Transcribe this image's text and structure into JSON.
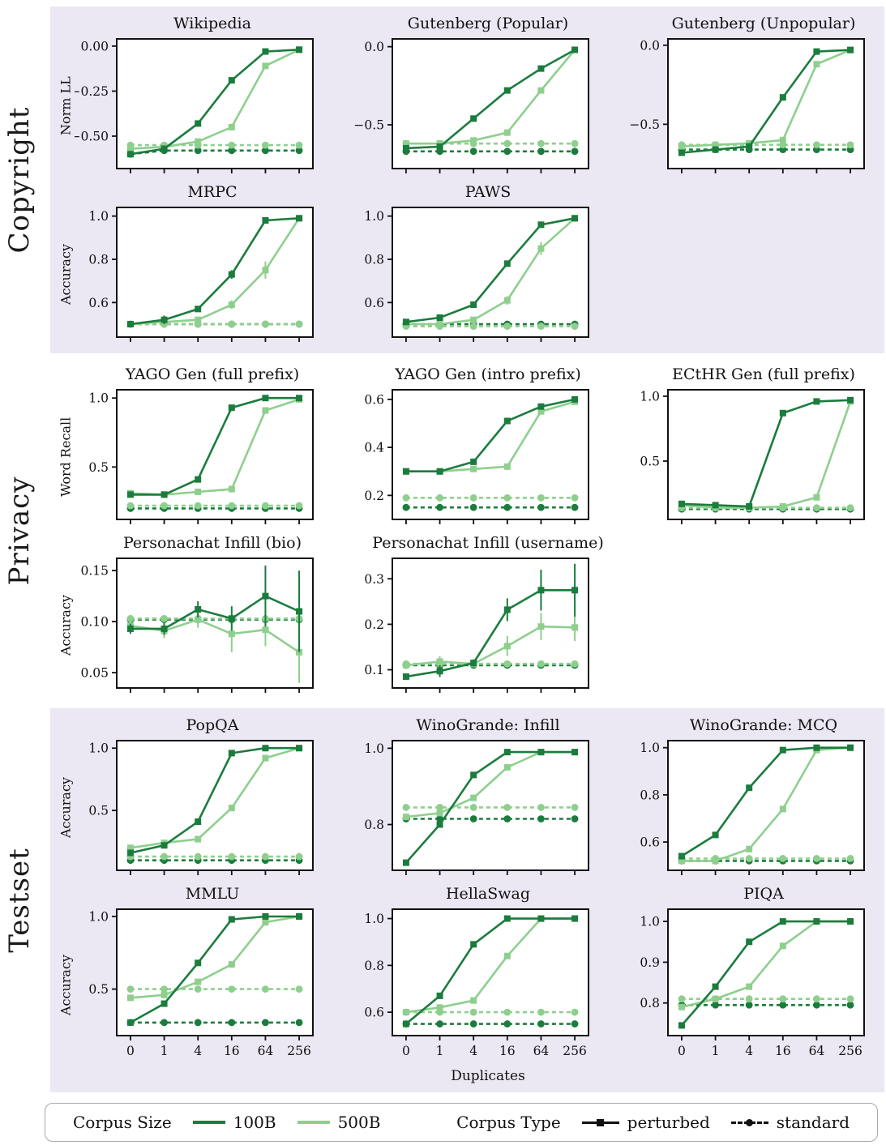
{
  "figure": {
    "groups": [
      {
        "label": "Copyright"
      },
      {
        "label": "Privacy"
      },
      {
        "label": "Testset"
      }
    ],
    "xlabel": "Duplicates",
    "x_categories": [
      "0",
      "1",
      "4",
      "16",
      "64",
      "256"
    ]
  },
  "styles": {
    "colors": {
      "100B": "#1b7c3d",
      "500B": "#8ecf8e"
    },
    "background_band": "#ebe7f3",
    "series": [
      {
        "key": "100B perturbed",
        "color": "#1b7c3d",
        "dash": "solid",
        "marker": "square"
      },
      {
        "key": "500B perturbed",
        "color": "#8ecf8e",
        "dash": "solid",
        "marker": "square"
      },
      {
        "key": "100B standard",
        "color": "#1b7c3d",
        "dash": "dashed",
        "marker": "circle"
      },
      {
        "key": "500B standard",
        "color": "#8ecf8e",
        "dash": "dashed",
        "marker": "circle"
      }
    ]
  },
  "legend": {
    "corpus_size_label": "Corpus Size",
    "size_items": [
      {
        "label": "100B"
      },
      {
        "label": "500B"
      }
    ],
    "corpus_type_label": "Corpus Type",
    "type_items": [
      {
        "label": "perturbed"
      },
      {
        "label": "standard"
      }
    ]
  },
  "chart_data": [
    {
      "type": "line",
      "title": "Wikipedia",
      "ylabel": "Norm LL",
      "ylim": [
        -0.68,
        0.04
      ],
      "yticks": [
        0.0,
        -0.25,
        -0.5
      ],
      "ytick_labels": [
        "0.00",
        "−0.25",
        "−0.50"
      ],
      "series": [
        {
          "name": "100B perturbed",
          "values": [
            -0.6,
            -0.57,
            -0.43,
            -0.19,
            -0.03,
            -0.02
          ]
        },
        {
          "name": "500B perturbed",
          "values": [
            -0.57,
            -0.56,
            -0.53,
            -0.45,
            -0.11,
            -0.02
          ]
        },
        {
          "name": "100B standard",
          "values": [
            -0.6,
            -0.58,
            -0.58,
            -0.58,
            -0.58,
            -0.58
          ]
        },
        {
          "name": "500B standard",
          "values": [
            -0.55,
            -0.55,
            -0.55,
            -0.55,
            -0.55,
            -0.55
          ]
        }
      ]
    },
    {
      "type": "line",
      "title": "Gutenberg (Popular)",
      "ylim": [
        -0.78,
        0.05
      ],
      "yticks": [
        0.0,
        -0.5
      ],
      "ytick_labels": [
        "0.0",
        "−0.5"
      ],
      "series": [
        {
          "name": "100B perturbed",
          "values": [
            -0.65,
            -0.64,
            -0.46,
            -0.28,
            -0.14,
            -0.02
          ]
        },
        {
          "name": "500B perturbed",
          "values": [
            -0.62,
            -0.62,
            -0.6,
            -0.55,
            -0.28,
            -0.02
          ]
        },
        {
          "name": "100B standard",
          "values": [
            -0.67,
            -0.67,
            -0.67,
            -0.67,
            -0.67,
            -0.67
          ]
        },
        {
          "name": "500B standard",
          "values": [
            -0.62,
            -0.62,
            -0.62,
            -0.62,
            -0.62,
            -0.62
          ]
        }
      ]
    },
    {
      "type": "line",
      "title": "Gutenberg (Unpopular)",
      "ylim": [
        -0.78,
        0.04
      ],
      "yticks": [
        0.0,
        -0.5
      ],
      "ytick_labels": [
        "0.0",
        "−0.5"
      ],
      "series": [
        {
          "name": "100B perturbed",
          "values": [
            -0.68,
            -0.66,
            -0.64,
            -0.33,
            -0.04,
            -0.03
          ]
        },
        {
          "name": "500B perturbed",
          "values": [
            -0.64,
            -0.63,
            -0.62,
            -0.6,
            -0.12,
            -0.03
          ]
        },
        {
          "name": "100B standard",
          "values": [
            -0.66,
            -0.66,
            -0.66,
            -0.66,
            -0.66,
            -0.66
          ]
        },
        {
          "name": "500B standard",
          "values": [
            -0.63,
            -0.63,
            -0.63,
            -0.63,
            -0.63,
            -0.63
          ]
        }
      ]
    },
    {
      "type": "line",
      "title": "MRPC",
      "ylabel": "Accuracy",
      "ylim": [
        0.44,
        1.04
      ],
      "yticks": [
        1.0,
        0.8,
        0.6
      ],
      "ytick_labels": [
        "1.0",
        "0.8",
        "0.6"
      ],
      "series": [
        {
          "name": "100B perturbed",
          "values": [
            0.5,
            0.52,
            0.57,
            0.73,
            0.98,
            0.99
          ],
          "err": [
            0,
            0.02,
            0.01,
            0.02,
            0.01,
            0.01
          ]
        },
        {
          "name": "500B perturbed",
          "values": [
            0.5,
            0.51,
            0.52,
            0.59,
            0.75,
            0.99
          ],
          "err": [
            0,
            0,
            0.01,
            0.02,
            0.04,
            0.01
          ]
        },
        {
          "name": "100B standard",
          "values": [
            0.5,
            0.5,
            0.5,
            0.5,
            0.5,
            0.5
          ]
        },
        {
          "name": "500B standard",
          "values": [
            0.5,
            0.5,
            0.5,
            0.5,
            0.5,
            0.5
          ]
        }
      ]
    },
    {
      "type": "line",
      "title": "PAWS",
      "ylim": [
        0.44,
        1.04
      ],
      "yticks": [
        1.0,
        0.8,
        0.6
      ],
      "ytick_labels": [
        "1.0",
        "0.8",
        "0.6"
      ],
      "series": [
        {
          "name": "100B perturbed",
          "values": [
            0.51,
            0.53,
            0.59,
            0.78,
            0.96,
            0.99
          ]
        },
        {
          "name": "500B perturbed",
          "values": [
            0.5,
            0.5,
            0.52,
            0.61,
            0.85,
            0.99
          ],
          "err": [
            0.01,
            0,
            0.01,
            0.02,
            0.03,
            0.01
          ]
        },
        {
          "name": "100B standard",
          "values": [
            0.5,
            0.5,
            0.5,
            0.5,
            0.5,
            0.5
          ]
        },
        {
          "name": "500B standard",
          "values": [
            0.49,
            0.49,
            0.49,
            0.49,
            0.49,
            0.49
          ]
        }
      ]
    },
    {
      "type": "line",
      "title": "YAGO Gen (full prefix)",
      "ylabel": "Word Recall",
      "ylim": [
        0.12,
        1.06
      ],
      "yticks": [
        1.0,
        0.5
      ],
      "ytick_labels": [
        "1.0",
        "0.5"
      ],
      "series": [
        {
          "name": "100B perturbed",
          "values": [
            0.3,
            0.3,
            0.41,
            0.93,
            1.0,
            1.0
          ]
        },
        {
          "name": "500B perturbed",
          "values": [
            0.31,
            0.3,
            0.32,
            0.34,
            0.91,
            0.99
          ]
        },
        {
          "name": "100B standard",
          "values": [
            0.2,
            0.2,
            0.2,
            0.2,
            0.2,
            0.2
          ]
        },
        {
          "name": "500B standard",
          "values": [
            0.22,
            0.22,
            0.22,
            0.22,
            0.22,
            0.22
          ]
        }
      ]
    },
    {
      "type": "line",
      "title": "YAGO Gen (intro prefix)",
      "ylim": [
        0.1,
        0.64
      ],
      "yticks": [
        0.6,
        0.4,
        0.2
      ],
      "ytick_labels": [
        "0.6",
        "0.4",
        "0.2"
      ],
      "series": [
        {
          "name": "100B perturbed",
          "values": [
            0.3,
            0.3,
            0.34,
            0.51,
            0.57,
            0.6
          ],
          "err": [
            0.01,
            0,
            0.01,
            0.01,
            0.01,
            0.01
          ]
        },
        {
          "name": "500B perturbed",
          "values": [
            0.3,
            0.3,
            0.31,
            0.32,
            0.55,
            0.59
          ]
        },
        {
          "name": "100B standard",
          "values": [
            0.15,
            0.15,
            0.15,
            0.15,
            0.15,
            0.15
          ]
        },
        {
          "name": "500B standard",
          "values": [
            0.19,
            0.19,
            0.19,
            0.19,
            0.19,
            0.19
          ]
        }
      ]
    },
    {
      "type": "line",
      "title": "ECtHR Gen (full prefix)",
      "ylim": [
        0.05,
        1.05
      ],
      "yticks": [
        1.0,
        0.5
      ],
      "ytick_labels": [
        "1.0",
        "0.5"
      ],
      "series": [
        {
          "name": "100B perturbed",
          "values": [
            0.17,
            0.16,
            0.15,
            0.87,
            0.96,
            0.97
          ]
        },
        {
          "name": "500B perturbed",
          "values": [
            0.16,
            0.14,
            0.14,
            0.15,
            0.22,
            0.96
          ]
        },
        {
          "name": "100B standard",
          "values": [
            0.13,
            0.13,
            0.13,
            0.13,
            0.13,
            0.13
          ]
        },
        {
          "name": "500B standard",
          "values": [
            0.14,
            0.14,
            0.14,
            0.14,
            0.14,
            0.14
          ]
        }
      ]
    },
    {
      "type": "line",
      "title": "Personachat Infill (bio)",
      "ylabel": "Accuracy",
      "ylim": [
        0.035,
        0.162
      ],
      "yticks": [
        0.15,
        0.1,
        0.05
      ],
      "ytick_labels": [
        "0.15",
        "0.10",
        "0.05"
      ],
      "series": [
        {
          "name": "100B perturbed",
          "values": [
            0.093,
            0.093,
            0.112,
            0.103,
            0.125,
            0.11
          ],
          "err": [
            0.005,
            0.006,
            0.008,
            0.012,
            0.03,
            0.04
          ]
        },
        {
          "name": "500B perturbed",
          "values": [
            0.096,
            0.091,
            0.102,
            0.088,
            0.092,
            0.07
          ],
          "err": [
            0.006,
            0.007,
            0.008,
            0.018,
            0.016,
            0.03
          ]
        },
        {
          "name": "100B standard",
          "values": [
            0.102,
            0.102,
            0.102,
            0.102,
            0.102,
            0.102
          ]
        },
        {
          "name": "500B standard",
          "values": [
            0.103,
            0.103,
            0.103,
            0.103,
            0.103,
            0.103
          ]
        }
      ]
    },
    {
      "type": "line",
      "title": "Personachat Infill (username)",
      "ylim": [
        0.06,
        0.345
      ],
      "yticks": [
        0.3,
        0.2,
        0.1
      ],
      "ytick_labels": [
        "0.3",
        "0.2",
        "0.1"
      ],
      "series": [
        {
          "name": "100B perturbed",
          "values": [
            0.085,
            0.097,
            0.115,
            0.232,
            0.275,
            0.275
          ],
          "err": [
            0.006,
            0.013,
            0.008,
            0.025,
            0.045,
            0.058
          ]
        },
        {
          "name": "500B perturbed",
          "values": [
            0.11,
            0.118,
            0.113,
            0.152,
            0.195,
            0.193
          ],
          "err": [
            0.008,
            0.012,
            0.006,
            0.022,
            0.03,
            0.03
          ]
        },
        {
          "name": "100B standard",
          "values": [
            0.11,
            0.11,
            0.11,
            0.11,
            0.11,
            0.11
          ]
        },
        {
          "name": "500B standard",
          "values": [
            0.113,
            0.113,
            0.113,
            0.113,
            0.113,
            0.113
          ]
        }
      ]
    },
    {
      "type": "line",
      "title": "PopQA",
      "ylabel": "Accuracy",
      "ylim": [
        0.02,
        1.06
      ],
      "yticks": [
        1.0,
        0.5
      ],
      "ytick_labels": [
        "1.0",
        "0.5"
      ],
      "series": [
        {
          "name": "100B perturbed",
          "values": [
            0.16,
            0.22,
            0.41,
            0.96,
            1.0,
            1.0
          ]
        },
        {
          "name": "500B perturbed",
          "values": [
            0.2,
            0.24,
            0.27,
            0.52,
            0.92,
            1.0
          ]
        },
        {
          "name": "100B standard",
          "values": [
            0.1,
            0.1,
            0.1,
            0.1,
            0.1,
            0.1
          ]
        },
        {
          "name": "500B standard",
          "values": [
            0.13,
            0.13,
            0.13,
            0.13,
            0.13,
            0.13
          ]
        }
      ]
    },
    {
      "type": "line",
      "title": "WinoGrande: Infill",
      "ylim": [
        0.68,
        1.02
      ],
      "yticks": [
        1.0,
        0.8
      ],
      "ytick_labels": [
        "1.0",
        "0.8"
      ],
      "series": [
        {
          "name": "100B perturbed",
          "values": [
            0.7,
            0.8,
            0.93,
            0.99,
            0.99,
            0.99
          ]
        },
        {
          "name": "500B perturbed",
          "values": [
            0.82,
            0.83,
            0.87,
            0.95,
            0.99,
            0.99
          ]
        },
        {
          "name": "100B standard",
          "values": [
            0.815,
            0.815,
            0.815,
            0.815,
            0.815,
            0.815
          ]
        },
        {
          "name": "500B standard",
          "values": [
            0.845,
            0.845,
            0.845,
            0.845,
            0.845,
            0.845
          ]
        }
      ]
    },
    {
      "type": "line",
      "title": "WinoGrande: MCQ",
      "ylim": [
        0.48,
        1.03
      ],
      "yticks": [
        1.0,
        0.8,
        0.6
      ],
      "ytick_labels": [
        "1.0",
        "0.8",
        "0.6"
      ],
      "series": [
        {
          "name": "100B perturbed",
          "values": [
            0.54,
            0.63,
            0.83,
            0.99,
            1.0,
            1.0
          ]
        },
        {
          "name": "500B perturbed",
          "values": [
            0.52,
            0.52,
            0.57,
            0.74,
            0.99,
            1.0
          ]
        },
        {
          "name": "100B standard",
          "values": [
            0.52,
            0.52,
            0.52,
            0.52,
            0.52,
            0.52
          ]
        },
        {
          "name": "500B standard",
          "values": [
            0.53,
            0.53,
            0.53,
            0.53,
            0.53,
            0.53
          ]
        }
      ]
    },
    {
      "type": "line",
      "title": "MMLU",
      "ylabel": "Accuracy",
      "show_x_labels": true,
      "ylim": [
        0.18,
        1.05
      ],
      "yticks": [
        1.0,
        0.5
      ],
      "ytick_labels": [
        "1.0",
        "0.5"
      ],
      "series": [
        {
          "name": "100B perturbed",
          "values": [
            0.27,
            0.4,
            0.68,
            0.98,
            1.0,
            1.0
          ]
        },
        {
          "name": "500B perturbed",
          "values": [
            0.44,
            0.46,
            0.55,
            0.67,
            0.96,
            1.0
          ]
        },
        {
          "name": "100B standard",
          "values": [
            0.27,
            0.27,
            0.27,
            0.27,
            0.27,
            0.27
          ]
        },
        {
          "name": "500B standard",
          "values": [
            0.5,
            0.5,
            0.5,
            0.5,
            0.5,
            0.5
          ]
        }
      ]
    },
    {
      "type": "line",
      "title": "HellaSwag",
      "show_x_labels": true,
      "ylim": [
        0.5,
        1.04
      ],
      "yticks": [
        1.0,
        0.8,
        0.6
      ],
      "ytick_labels": [
        "1.0",
        "0.8",
        "0.6"
      ],
      "series": [
        {
          "name": "100B perturbed",
          "values": [
            0.55,
            0.67,
            0.89,
            1.0,
            1.0,
            1.0
          ]
        },
        {
          "name": "500B perturbed",
          "values": [
            0.6,
            0.62,
            0.65,
            0.84,
            1.0,
            1.0
          ]
        },
        {
          "name": "100B standard",
          "values": [
            0.55,
            0.55,
            0.55,
            0.55,
            0.55,
            0.55
          ]
        },
        {
          "name": "500B standard",
          "values": [
            0.6,
            0.6,
            0.6,
            0.6,
            0.6,
            0.6
          ]
        }
      ]
    },
    {
      "type": "line",
      "title": "PIQA",
      "show_x_labels": true,
      "ylim": [
        0.72,
        1.03
      ],
      "yticks": [
        1.0,
        0.9,
        0.8
      ],
      "ytick_labels": [
        "1.0",
        "0.9",
        "0.8"
      ],
      "series": [
        {
          "name": "100B perturbed",
          "values": [
            0.745,
            0.84,
            0.95,
            1.0,
            1.0,
            1.0
          ]
        },
        {
          "name": "500B perturbed",
          "values": [
            0.79,
            0.81,
            0.84,
            0.94,
            1.0,
            1.0
          ]
        },
        {
          "name": "100B standard",
          "values": [
            0.795,
            0.795,
            0.795,
            0.795,
            0.795,
            0.795
          ]
        },
        {
          "name": "500B standard",
          "values": [
            0.81,
            0.81,
            0.81,
            0.81,
            0.81,
            0.81
          ]
        }
      ]
    }
  ]
}
